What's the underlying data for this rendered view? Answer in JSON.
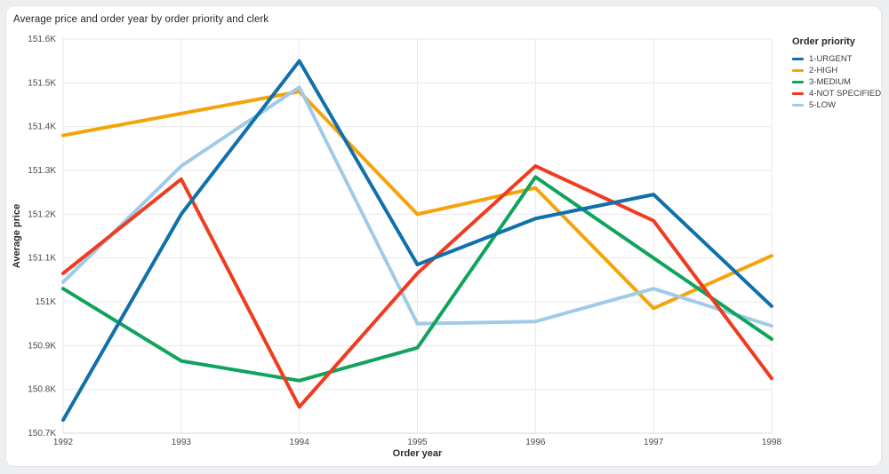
{
  "chart_data": {
    "type": "line",
    "title": "Average price and order year by order priority and clerk",
    "xlabel": "Order year",
    "ylabel": "Average price",
    "legend_title": "Order priority",
    "legend_position": "top-right",
    "grid": true,
    "x": [
      1992,
      1993,
      1994,
      1995,
      1996,
      1997,
      1998
    ],
    "ylim": [
      150700,
      151600
    ],
    "ytick_step": 100,
    "ytick_labels": [
      "150.7K",
      "150.8K",
      "150.9K",
      "151K",
      "151.1K",
      "151.2K",
      "151.3K",
      "151.4K",
      "151.5K",
      "151.6K"
    ],
    "series": [
      {
        "name": "1-URGENT",
        "color": "#1170aa",
        "values": [
          150730,
          151200,
          151550,
          151085,
          151190,
          151245,
          150990
        ]
      },
      {
        "name": "2-HIGH",
        "color": "#f5a30b",
        "values": [
          151380,
          151430,
          151480,
          151200,
          151260,
          150985,
          151105
        ]
      },
      {
        "name": "3-MEDIUM",
        "color": "#0fa35c",
        "values": [
          151030,
          150865,
          150820,
          150895,
          151285,
          151100,
          150915
        ]
      },
      {
        "name": "4-NOT SPECIFIED",
        "color": "#f03b20",
        "values": [
          151065,
          151280,
          150760,
          151065,
          151310,
          151185,
          150825
        ]
      },
      {
        "name": "5-LOW",
        "color": "#a0cbe8",
        "values": [
          151045,
          151310,
          151490,
          150950,
          150955,
          151030,
          150945
        ]
      }
    ],
    "draw_order": [
      1,
      4,
      2,
      3,
      0
    ],
    "line_width": 4
  }
}
